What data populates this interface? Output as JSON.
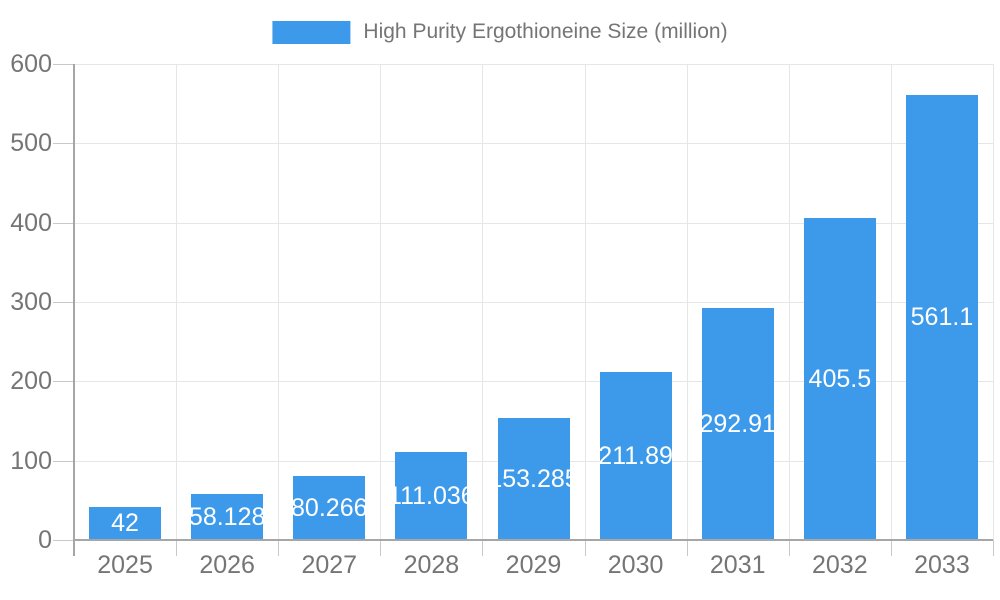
{
  "legend": {
    "label": "High Purity Ergothioneine Size (million)"
  },
  "chart_data": {
    "type": "bar",
    "title": "High Purity Ergothioneine Size (million)",
    "categories": [
      "2025",
      "2026",
      "2027",
      "2028",
      "2029",
      "2030",
      "2031",
      "2032",
      "2033"
    ],
    "series": [
      {
        "name": "High Purity Ergothioneine Size (million)",
        "values": [
          42,
          58.128,
          80.266,
          111.036,
          153.285,
          211.89,
          292.91,
          405.5,
          561.1
        ]
      }
    ],
    "value_labels": [
      "42",
      "58.128",
      "80.266",
      "111.036",
      "153.285",
      "211.89",
      "292.91",
      "405.5",
      "561.1"
    ],
    "xlabel": "",
    "ylabel": "",
    "ylim": [
      0,
      600
    ],
    "ytick_interval": 100,
    "yticks": [
      0,
      100,
      200,
      300,
      400,
      500,
      600
    ],
    "grid": true,
    "legend_position": "top",
    "colors": {
      "bar": "#3d9aeb",
      "grid": "#e6e6e6",
      "axis": "#a6a6a6",
      "tick": "#c9c9c9",
      "axis_text": "#757575",
      "value_text": "#ffffff",
      "background": "#ffffff"
    }
  }
}
